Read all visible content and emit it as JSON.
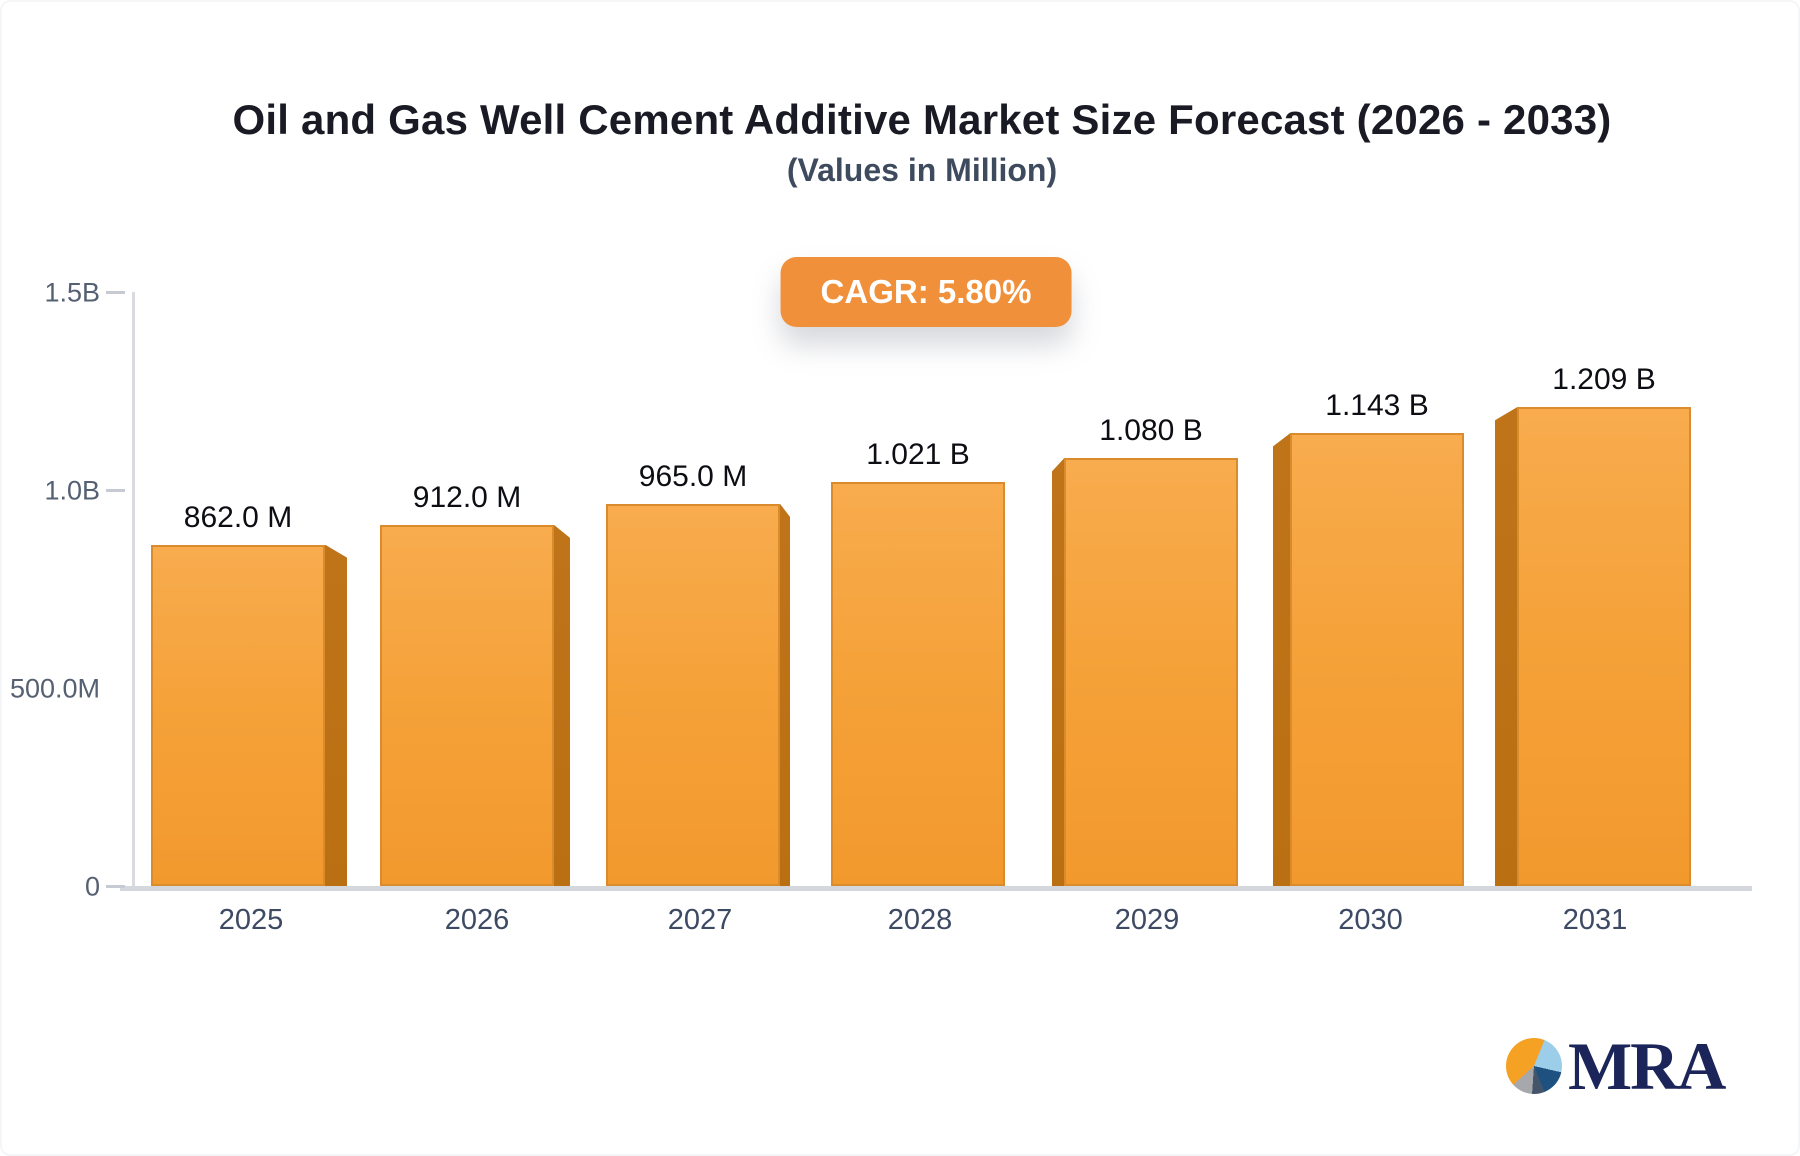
{
  "header": {
    "title": "Oil and Gas Well Cement Additive Market Size Forecast (2026 - 2033)",
    "subtitle": "(Values in Million)"
  },
  "badge": {
    "label": "CAGR: 5.80%",
    "bg_color": "#F1903B"
  },
  "chart_data": {
    "type": "bar",
    "title": "Oil and Gas Well Cement Additive Market Size Forecast (2026 - 2033)",
    "subtitle": "(Values in Million)",
    "xlabel": "",
    "ylabel": "",
    "grid": "off",
    "legend": "none",
    "categories": [
      "2025",
      "2026",
      "2027",
      "2028",
      "2029",
      "2030",
      "2031"
    ],
    "values_millions": [
      862.0,
      912.0,
      965.0,
      1021.0,
      1080.0,
      1143.0,
      1209.0
    ],
    "value_labels": [
      "862.0 M",
      "912.0 M",
      "965.0 M",
      "1.021 B",
      "1.080 B",
      "1.143 B",
      "1.209 B"
    ],
    "ylim_millions": [
      0,
      1500
    ],
    "y_ticks": [
      {
        "label": "1.5B",
        "value_millions": 1500,
        "tick_mark": true
      },
      {
        "label": "1.0B",
        "value_millions": 1000,
        "tick_mark": true
      },
      {
        "label": "500.0M",
        "value_millions": 500,
        "tick_mark": false
      },
      {
        "label": "0",
        "value_millions": 0,
        "tick_mark": true
      }
    ],
    "colors": {
      "bar_face_top": "#F8AC4E",
      "bar_face_bottom": "#F2992D",
      "bar_face_border": "#DA8B2B",
      "bar_side_3d": "#BE7315",
      "axis_line": "#D4D7DC",
      "axis_label": "#556072"
    }
  },
  "logo": {
    "text": "MRA",
    "pie_colors": [
      "#F5A123",
      "#9CCEEA",
      "#1F5180",
      "#44546A",
      "#A6A8AB"
    ],
    "text_color": "#1B2559"
  }
}
